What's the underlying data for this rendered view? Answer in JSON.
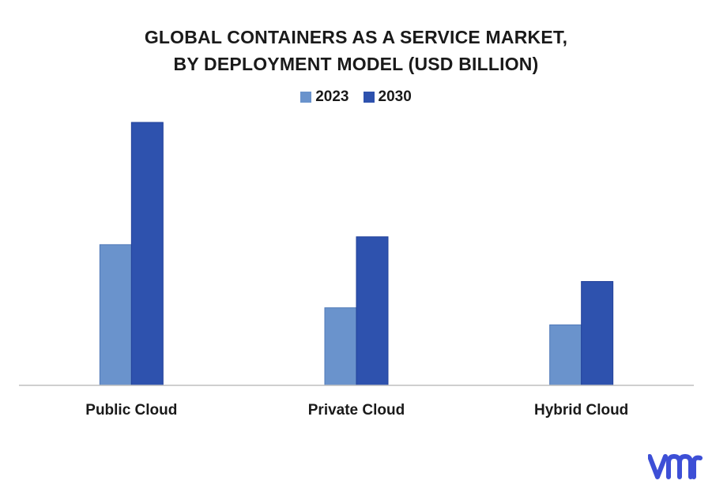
{
  "title_line1": "GLOBAL CONTAINERS AS A SERVICE MARKET,",
  "title_line2": "BY DEPLOYMENT MODEL (USD BILLION)",
  "legend": [
    {
      "label": "2023",
      "color": "#6a93cc"
    },
    {
      "label": "2030",
      "color": "#2e52ae"
    }
  ],
  "chart_data": {
    "type": "bar",
    "title": "GLOBAL CONTAINERS AS A SERVICE MARKET, BY DEPLOYMENT MODEL (USD BILLION)",
    "categories": [
      "Public Cloud",
      "Private Cloud",
      "Hybrid Cloud"
    ],
    "series": [
      {
        "name": "2023",
        "values": [
          5.35,
          2.95,
          2.3
        ],
        "color": "#6a93cc"
      },
      {
        "name": "2030",
        "values": [
          10.0,
          5.65,
          3.95
        ],
        "color": "#2e52ae"
      }
    ],
    "xlabel": "",
    "ylabel": "",
    "ylim": [
      0,
      10
    ],
    "grid": false,
    "legend_position": "top-center",
    "axis_color": "#bfbfbf"
  },
  "logo_icon": "vmr-logo-icon",
  "logo_color": "#3d4fd6"
}
